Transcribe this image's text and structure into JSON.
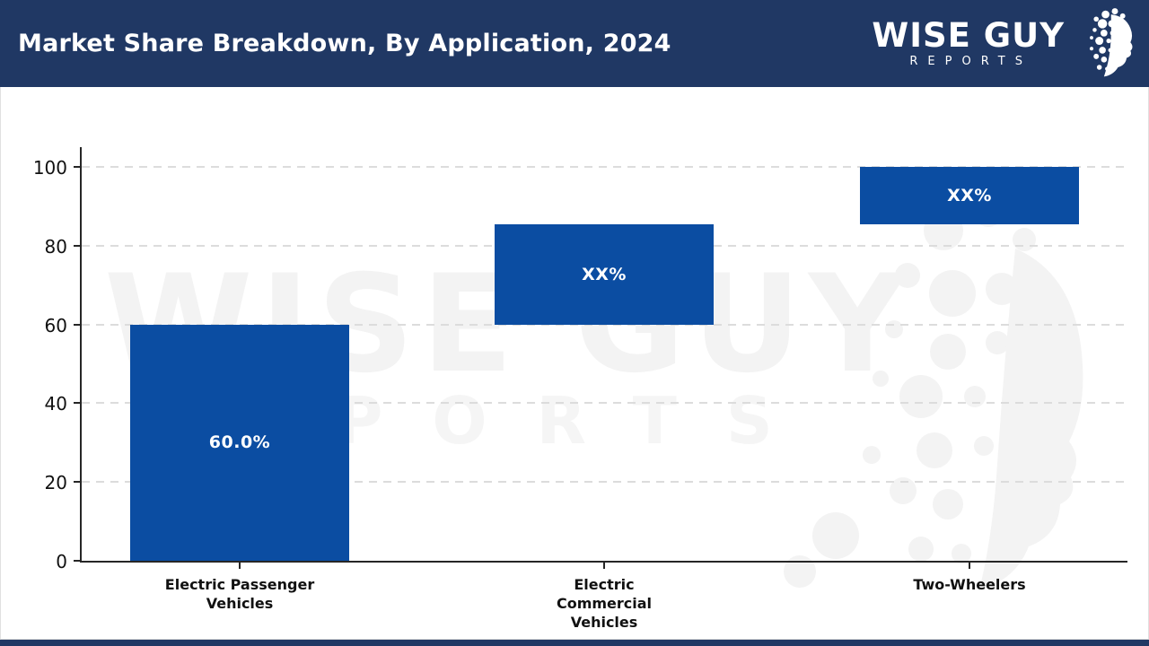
{
  "header": {
    "title": "Market Share Breakdown, By Application, 2024",
    "logo": {
      "line1": "WISE GUY",
      "line2": "REPORTS"
    }
  },
  "watermark": {
    "line1": "WISE GUY",
    "line2": "REPORTS"
  },
  "chart_data": {
    "type": "bar",
    "subtype": "waterfall-breakdown",
    "title": "Market Share Breakdown, By Application, 2024",
    "categories": [
      "Electric Passenger\nVehicles",
      "Electric\nCommercial\nVehicles",
      "Two-Wheelers"
    ],
    "bars": [
      {
        "category": "Electric Passenger Vehicles",
        "start": 0,
        "end": 60,
        "value": 60.0,
        "label": "60.0%"
      },
      {
        "category": "Electric Commercial Vehicles",
        "start": 60,
        "end": 85.5,
        "value": 25.5,
        "label": "XX%"
      },
      {
        "category": "Two-Wheelers",
        "start": 85.5,
        "end": 100,
        "value": 14.5,
        "label": "XX%"
      }
    ],
    "yticks": [
      0,
      20,
      40,
      60,
      80,
      100
    ],
    "ylim": [
      0,
      105
    ],
    "xlabel": "",
    "ylabel": "",
    "grid": "horizontal-dashed",
    "legend": "none"
  },
  "colors": {
    "header_bg": "#203864",
    "footer_bg": "#203864",
    "bar": "#0b4da2",
    "bar_label": "#ffffff",
    "axis": "#262626",
    "grid": "#dcdcdc",
    "watermark": "#f3f3f3"
  }
}
